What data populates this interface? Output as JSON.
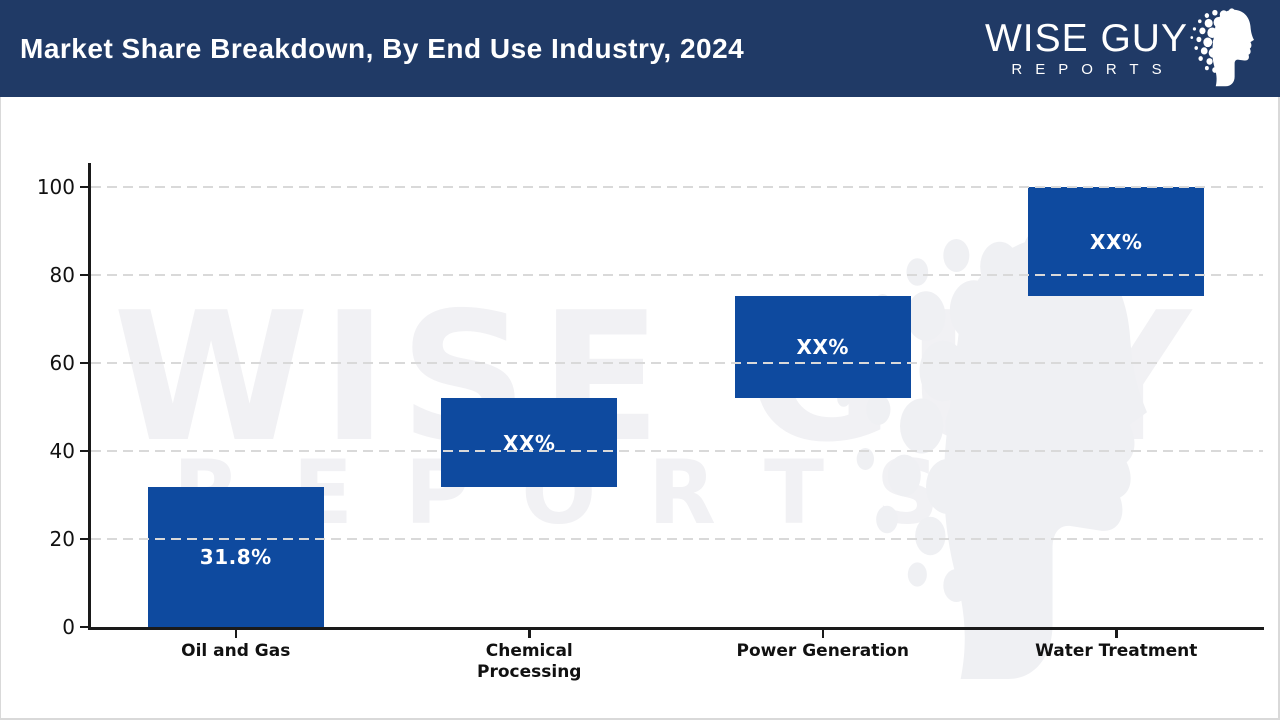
{
  "header": {
    "title": "Market Share Breakdown, By End Use Industry, 2024",
    "logo_primary": "WISE GUY",
    "logo_secondary": "REPORTS",
    "background_color": "#203A66"
  },
  "watermark": {
    "line1": "WISE GUY",
    "line2": "REPORTS",
    "color": "#F1F1F4"
  },
  "chart_data": {
    "type": "bar",
    "subtype": "floating-waterfall",
    "title": "Market Share Breakdown, By End Use Industry, 2024",
    "categories": [
      "Oil and Gas",
      "Chemical Processing",
      "Power Generation",
      "Water Treatment"
    ],
    "segments": [
      {
        "category": "Oil and Gas",
        "start": 0,
        "end": 31.8,
        "label": "31.8%"
      },
      {
        "category": "Chemical\nProcessing",
        "start": 31.8,
        "end": 52,
        "label": "XX%"
      },
      {
        "category": "Power Generation",
        "start": 52,
        "end": 75.2,
        "label": "XX%"
      },
      {
        "category": "Water Treatment",
        "start": 75.2,
        "end": 100,
        "label": "XX%"
      }
    ],
    "ylim": [
      0,
      100
    ],
    "yticks": [
      0,
      20,
      40,
      60,
      80,
      100
    ],
    "grid": {
      "horizontal": true,
      "style": "dashed",
      "color": "#D9D9D9",
      "above_bars": true
    },
    "bar_color": "#0E4A9F",
    "bar_label_color": "#FFFFFF",
    "axis_color": "#1A1A1A",
    "legend": "none",
    "xlabel": "",
    "ylabel": ""
  }
}
